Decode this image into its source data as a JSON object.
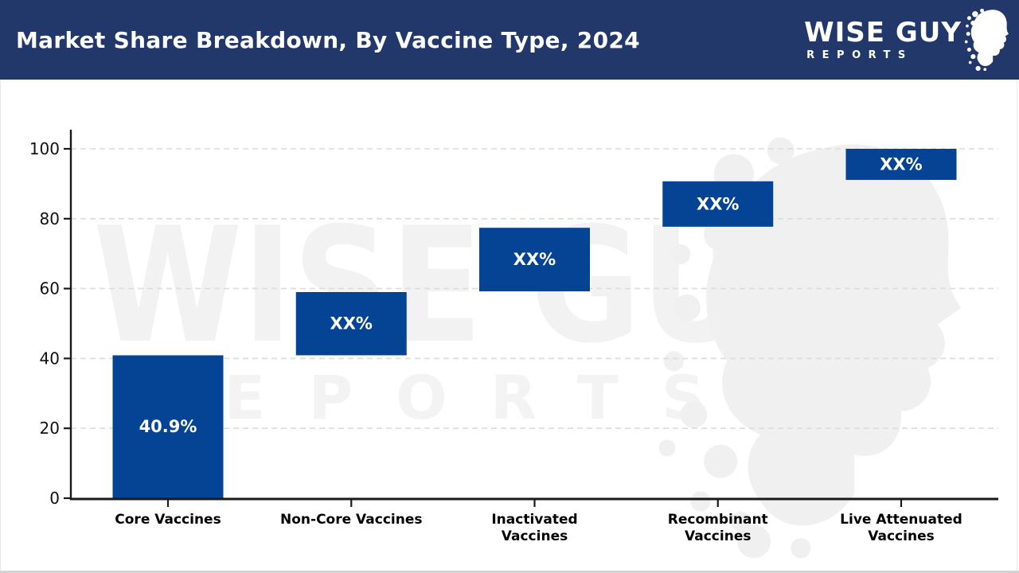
{
  "header": {
    "title": "Market Share Breakdown, By Vaccine Type, 2024",
    "logo": {
      "line1": "WISE GUY",
      "line2": "REPORTS"
    }
  },
  "watermark": {
    "line1": "WISE GUY",
    "line2": "REPORTS"
  },
  "colors": {
    "header_bg": "#22386a",
    "bar": "#054495",
    "bar_label": "#ffffff",
    "axis": "#1a1a1a",
    "gridline": "#dcdcdc",
    "watermark": "#f0f0f0"
  },
  "chart_data": {
    "type": "bar",
    "subtype": "waterfall",
    "title": "Market Share Breakdown, By Vaccine Type, 2024",
    "categories": [
      "Core Vaccines",
      "Non-Core Vaccines",
      "Inactivated\nVaccines",
      "Recombinant\nVaccines",
      "Live Attenuated\nVaccines"
    ],
    "segments": [
      {
        "category": "Core Vaccines",
        "start": 0,
        "end": 40.9,
        "label": "40.9%"
      },
      {
        "category": "Non-Core Vaccines",
        "start": 40.9,
        "end": 59.0,
        "label": "XX%"
      },
      {
        "category": "Inactivated Vaccines",
        "start": 59.2,
        "end": 77.4,
        "label": "XX%"
      },
      {
        "category": "Recombinant Vaccines",
        "start": 77.7,
        "end": 90.7,
        "label": "XX%"
      },
      {
        "category": "Live Attenuated Vaccines",
        "start": 91.1,
        "end": 100,
        "label": "XX%"
      }
    ],
    "ylim": [
      0,
      100
    ],
    "yticks": [
      0,
      20,
      40,
      60,
      80,
      100
    ],
    "xlabel": "",
    "ylabel": "",
    "grid": "horizontal-dashed",
    "legend": "none"
  }
}
